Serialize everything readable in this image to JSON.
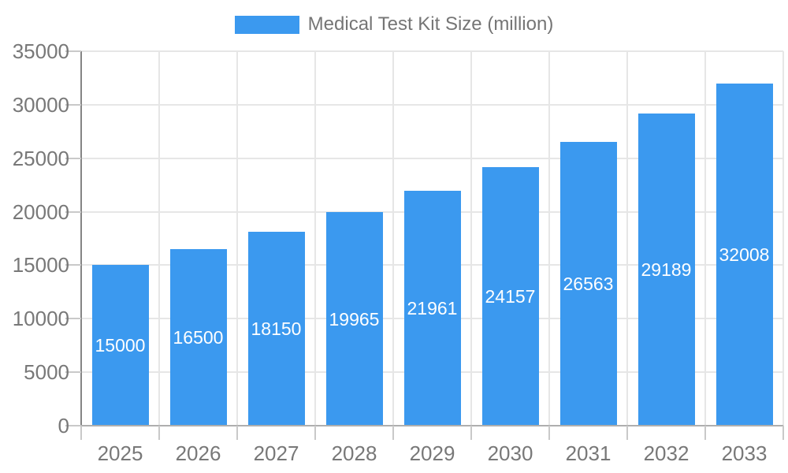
{
  "legend": {
    "label": "Medical Test Kit Size (million)"
  },
  "chart_data": {
    "type": "bar",
    "title": "Medical Test Kit Size (million)",
    "categories": [
      "2025",
      "2026",
      "2027",
      "2028",
      "2029",
      "2030",
      "2031",
      "2032",
      "2033"
    ],
    "values": [
      15000,
      16500,
      18150,
      19965,
      21961,
      24157,
      26563,
      29189,
      32008
    ],
    "series": [
      {
        "name": "Medical Test Kit Size (million)",
        "values": [
          15000,
          16500,
          18150,
          19965,
          21961,
          24157,
          26563,
          29189,
          32008
        ]
      }
    ],
    "xlabel": "",
    "ylabel": "",
    "ylim": [
      0,
      35000
    ],
    "yticks": [
      0,
      5000,
      10000,
      15000,
      20000,
      25000,
      30000,
      35000
    ],
    "grid": true,
    "legend_position": "top",
    "value_labels": "inside-center",
    "colors": {
      "bar": "#3b99ef",
      "value_label": "#ffffff",
      "tick_label": "#787878",
      "gridline": "#e6e6e6"
    }
  }
}
